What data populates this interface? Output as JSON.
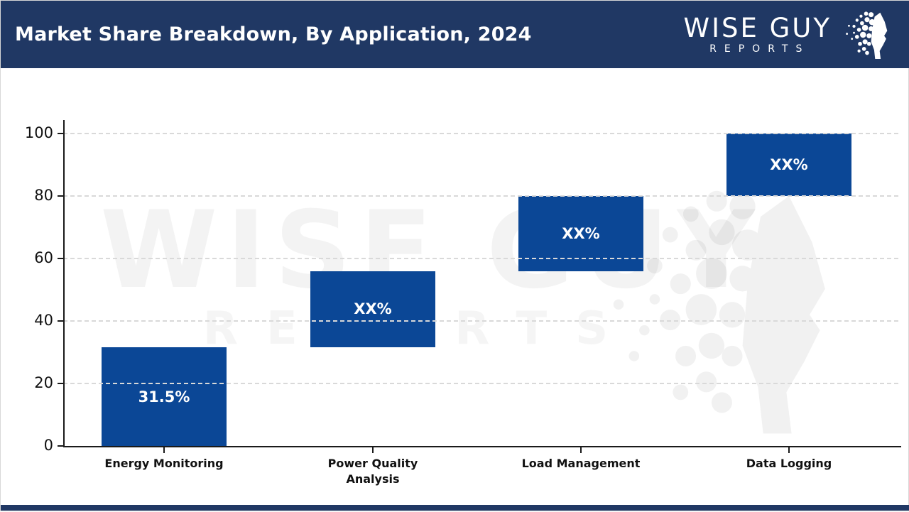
{
  "header": {
    "title": "Market Share Breakdown, By Application, 2024",
    "logo": {
      "line1": "WISE GUY",
      "line2": "REPORTS"
    }
  },
  "watermark": {
    "line1": "WISE GUY",
    "line2": "REPORTS"
  },
  "colors": {
    "header_bg": "#203864",
    "bar": "#0b4796",
    "grid": "#d9d9d9",
    "axis": "#1a1a1a",
    "bar_label": "#ffffff"
  },
  "chart_data": {
    "type": "bar",
    "subtype": "waterfall",
    "title": "Market Share Breakdown, By Application, 2024",
    "categories": [
      "Energy Monitoring",
      "Power Quality Analysis",
      "Load Management",
      "Data Logging"
    ],
    "segments": [
      {
        "category": "Energy Monitoring",
        "label": "31.5%",
        "start": 0,
        "end": 31.5
      },
      {
        "category": "Power Quality Analysis",
        "label": "XX%",
        "start": 31.5,
        "end": 56
      },
      {
        "category": "Load Management",
        "label": "XX%",
        "start": 56,
        "end": 80
      },
      {
        "category": "Data Logging",
        "label": "XX%",
        "start": 80,
        "end": 100
      }
    ],
    "ylim": [
      0,
      100
    ],
    "yticks": [
      0,
      20,
      40,
      60,
      80,
      100
    ],
    "xlabel": "",
    "ylabel": "",
    "grid": true,
    "gridline_style": "dashed",
    "legend": "none",
    "bar_color": "#0b4796"
  }
}
